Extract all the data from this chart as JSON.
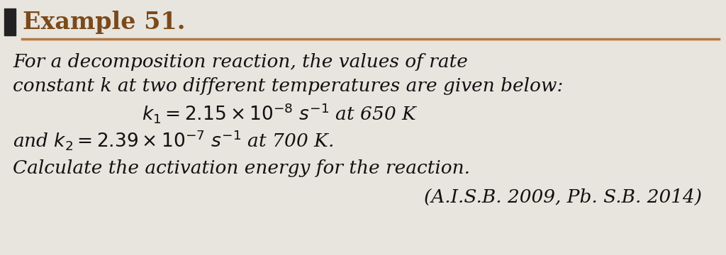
{
  "bg_color": "#e8e4de",
  "header_text": "Example 51.",
  "header_color": "#7b4a1a",
  "header_fontsize": 24,
  "divider_color": "#b87840",
  "body_fontsize": 19,
  "text_color": "#111111",
  "left_square_color": "#222222",
  "line1": "For a decomposition reaction, the values of rate",
  "line2": "constant k at two different temperatures are given below:",
  "line3": "$k_1 = 2.15\\times10^{-8}\\ s^{-1}$ at 650 K",
  "line4": "and $k_2 = 2.39 \\times 10^{-7}\\ s^{-1}$ at 700 K.",
  "line5": "Calculate the activation energy for the reaction.",
  "line6": "(A.I.S.B. 2009, Pb. S.B. 2014)"
}
